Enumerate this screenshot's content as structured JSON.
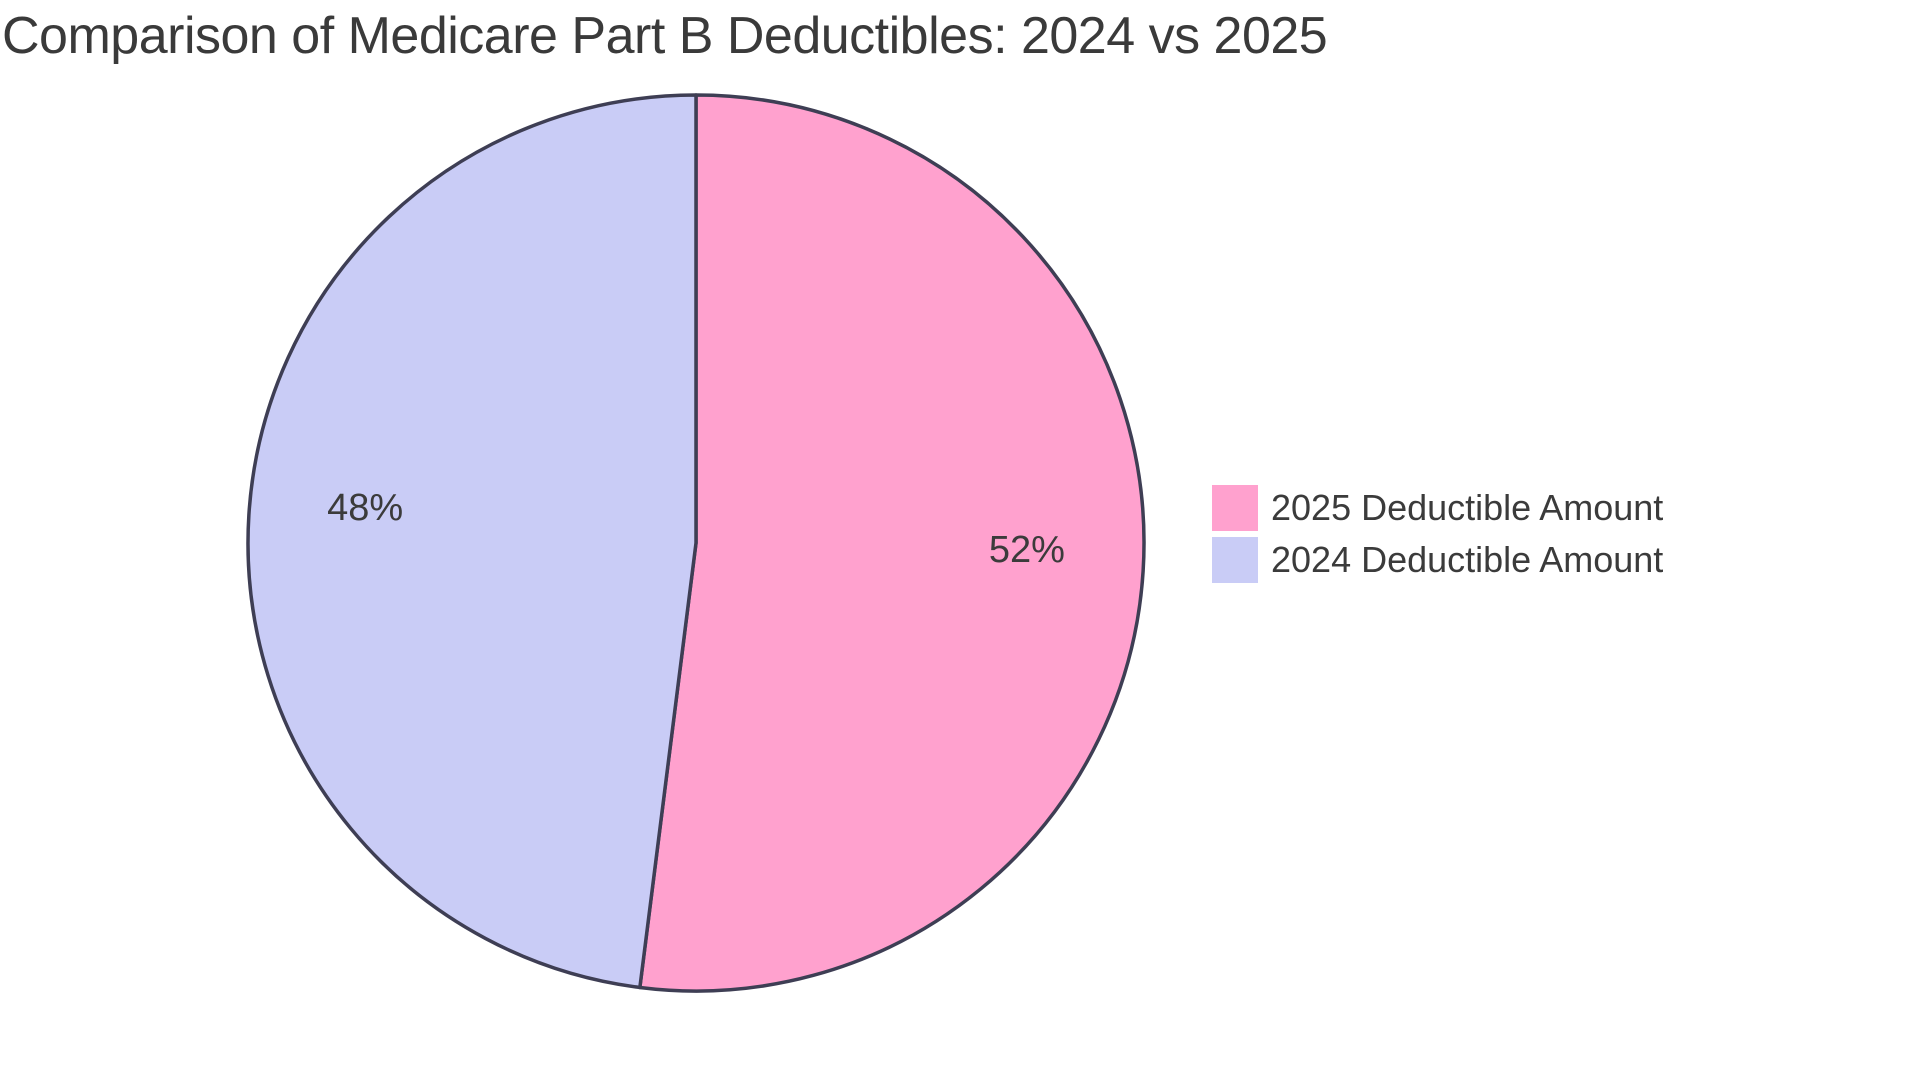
{
  "title": {
    "text": "Comparison of Medicare Part B Deductibles: 2024 vs 2025"
  },
  "chart_data": {
    "type": "pie",
    "title": "Comparison of Medicare Part B Deductibles: 2024 vs 2025",
    "labels": [
      "2025 Deductible Amount",
      "2024 Deductible Amount"
    ],
    "values": [
      52,
      48
    ],
    "value_labels": [
      "52%",
      "48%"
    ],
    "colors": [
      "#FFA1CE",
      "#C9CCF6"
    ],
    "outline_color": "#3E3E54",
    "outline_width": 3.5,
    "slice_label_color": "#3b3b3b",
    "title_color": "#3a3a3a",
    "legend_text_color": "#3b3b3b",
    "start_angle_deg": 0,
    "direction": "clockwise",
    "legend_position": "right",
    "background": "#ffffff"
  }
}
